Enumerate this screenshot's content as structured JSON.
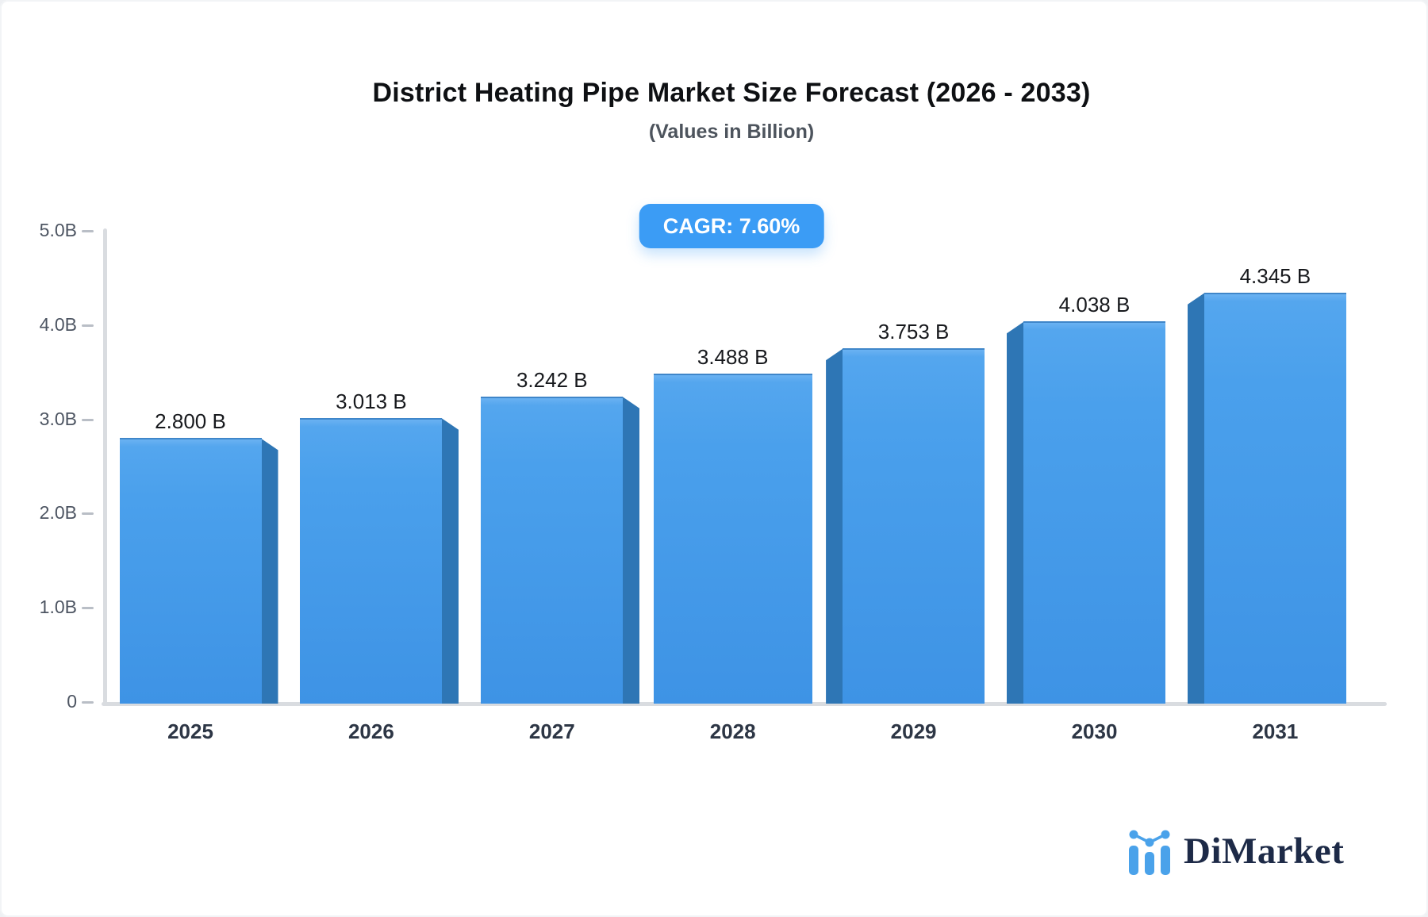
{
  "header": {
    "title": "District Heating Pipe Market Size Forecast (2026 - 2033)",
    "subtitle": "(Values in Billion)",
    "cagr_badge": "CAGR: 7.60%"
  },
  "chart_data": {
    "type": "bar",
    "title": "District Heating Pipe Market Size Forecast (2026 - 2033)",
    "subtitle": "(Values in Billion)",
    "categories": [
      "2025",
      "2026",
      "2027",
      "2028",
      "2029",
      "2030",
      "2031"
    ],
    "values": [
      2.8,
      3.013,
      3.242,
      3.488,
      3.753,
      4.038,
      4.345
    ],
    "value_labels": [
      "2.800 B",
      "3.013 B",
      "3.242 B",
      "3.488 B",
      "3.753 B",
      "4.038 B",
      "4.345 B"
    ],
    "unit": "Billion",
    "cagr": "7.60%",
    "ylim": [
      0,
      5
    ],
    "y_ticks": {
      "labels": [
        "5.0B",
        "4.0B",
        "3.0B",
        "2.0B",
        "1.0B",
        "0"
      ],
      "values": [
        5,
        4,
        3,
        2,
        1,
        0
      ]
    },
    "grid": false,
    "legend": false,
    "style_note": "3d extruded bars, extrusion faces away from chart center"
  },
  "colors": {
    "bar_face": "#4aa0ec",
    "bar_face_highlight": "#6ab2f2",
    "bar_face_deep": "#3e93e5",
    "bar_side": "#2e76b5",
    "bar_top_line": "#3f86c9",
    "badge_bg": "#3b9cf5",
    "badge_text": "#ffffff",
    "axis_line": "#d9dce0",
    "tick": "#b9bec6",
    "y_label": "#4d5562",
    "x_label": "#2d3645",
    "value_label": "#17191d",
    "title": "#0e1013",
    "subtitle": "#4d545d",
    "logo_blue": "#4aa2ea",
    "logo_navy": "#1d2a47"
  },
  "logo": {
    "text": "DiMarket",
    "icon": "mini-bar-line-chart-icon"
  }
}
